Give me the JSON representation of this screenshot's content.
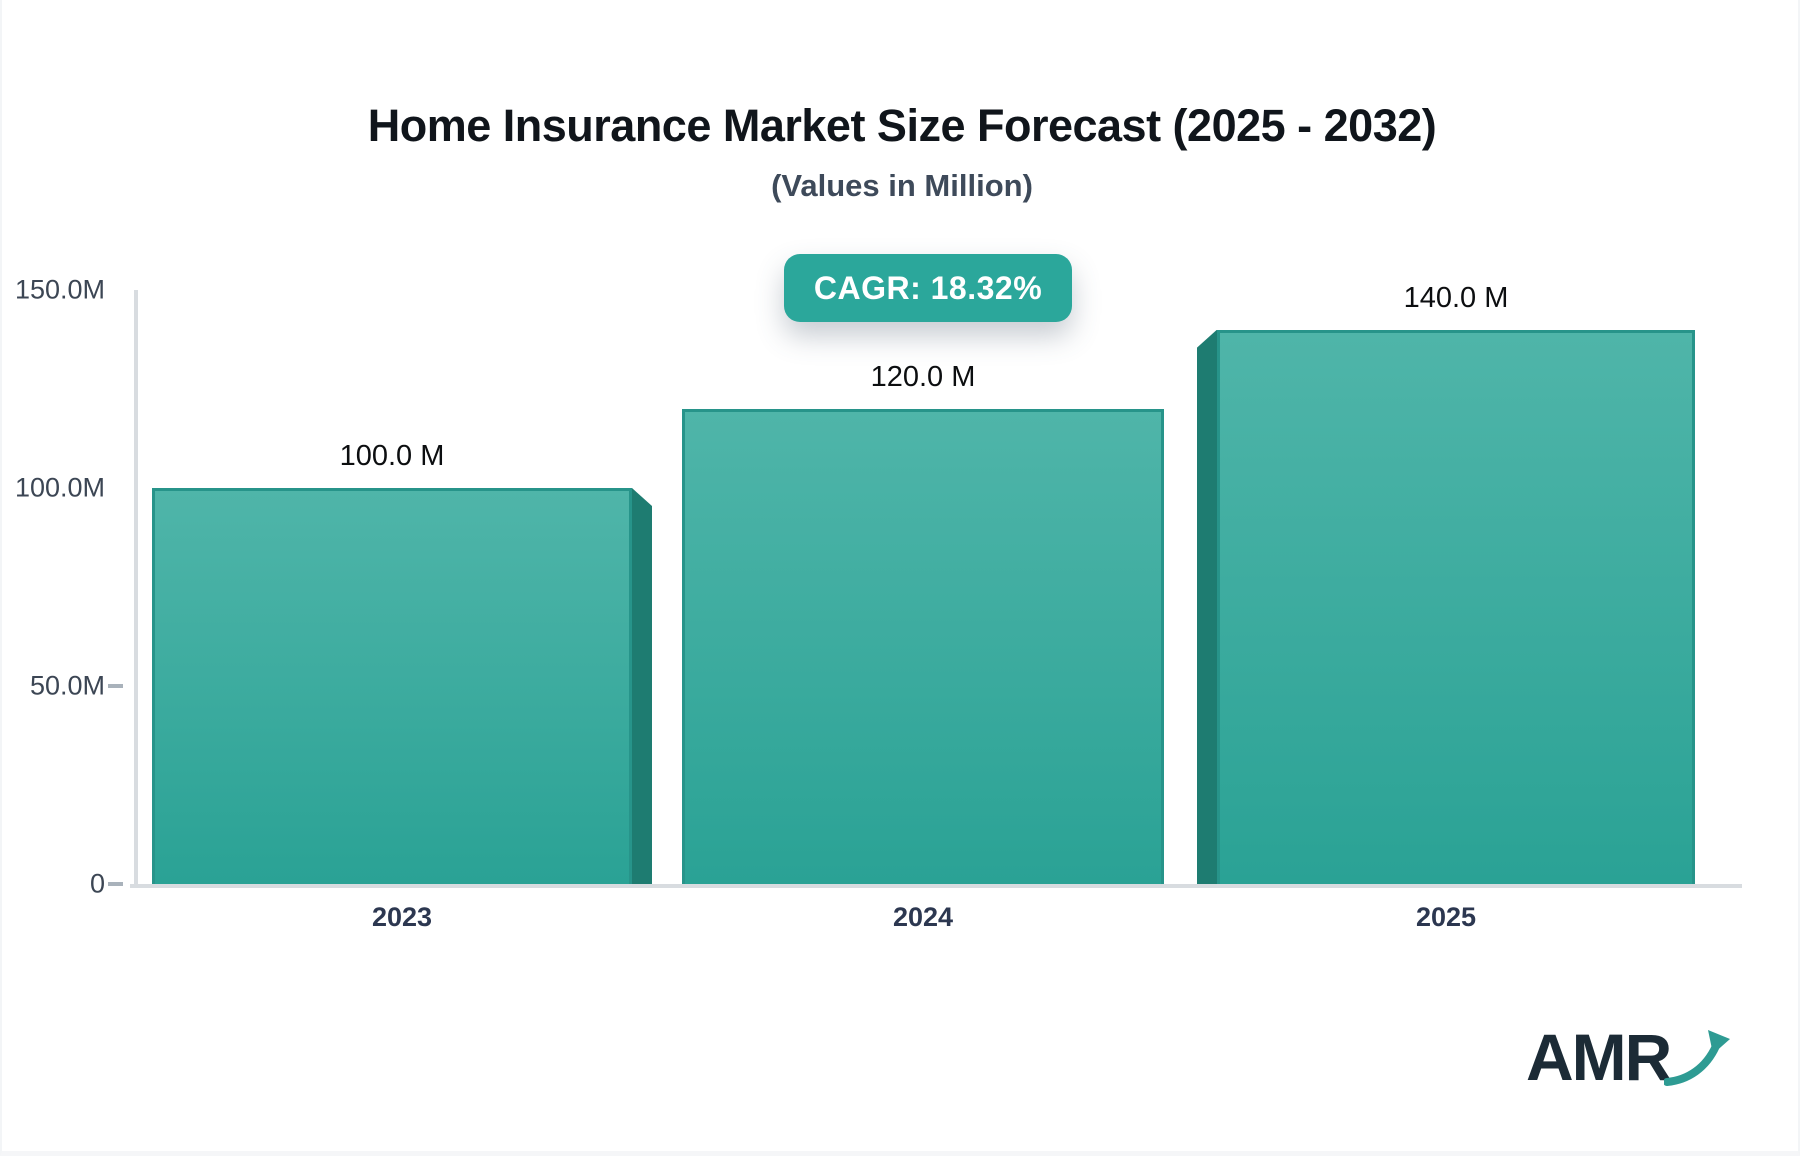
{
  "header": {
    "title": "Home Insurance Market Size Forecast (2025 - 2032)",
    "subtitle": "(Values in Million)"
  },
  "badge": {
    "label": "CAGR: 18.32%",
    "bg_color": "#2ba79b",
    "text_color": "#ffffff"
  },
  "chart_data": {
    "type": "bar",
    "title": "Home Insurance Market Size Forecast (2025 - 2032)",
    "subtitle": "(Values in Million)",
    "unit": "Million",
    "cagr": "18.32%",
    "categories": [
      "2023",
      "2024",
      "2025"
    ],
    "values": [
      100.0,
      120.0,
      140.0
    ],
    "value_labels": [
      "100.0 M",
      "120.0 M",
      "140.0 M"
    ],
    "ylim": [
      0,
      150
    ],
    "yticks": [
      {
        "value": 150,
        "label": "150.0M",
        "dash": false
      },
      {
        "value": 100,
        "label": "100.0M",
        "dash": false
      },
      {
        "value": 50,
        "label": "50.0M",
        "dash": true
      },
      {
        "value": 0,
        "label": "0",
        "dash": true
      }
    ],
    "grid": false,
    "legend": false,
    "bar_color_top": "#4fb5a9",
    "bar_color_bottom": "#2aa295",
    "bar_border_color": "#27948a",
    "bar_side_color": "#1e7c71",
    "axis_color": "#d8dce0",
    "label_color": "#0c0e10"
  },
  "logo": {
    "text": "AMR",
    "arrow_icon": "trend-up-arrow",
    "text_color": "#1c2b36",
    "arrow_color": "#2e9b93"
  }
}
